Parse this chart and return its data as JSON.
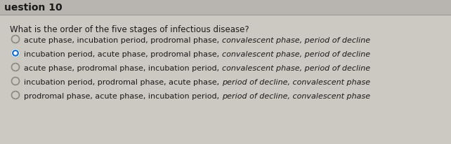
{
  "background_color": "#ccc9c3",
  "header_color": "#b8b5b0",
  "header_text": "uestion 10",
  "header_fontsize": 10,
  "question": "What is the order of the five stages of infectious disease?",
  "question_fontsize": 8.5,
  "options": [
    "acute phase, incubation period, prodromal phase, convalescent phase, period of decline",
    "incubation period, acute phase, prodromal phase, convalescent phase, period of decline",
    "acute phase, prodromal phase, incubation period, convalescent phase, period of decline",
    "incubation period, prodromal phase, acute phase, period of decline, convalescent phase",
    "prodromal phase, acute phase, incubation period, period of decline, convalescent phase"
  ],
  "option_fontsize": 8.0,
  "selected_index": 1,
  "radio_color_unselected": "#888880",
  "radio_color_selected": "#1a6fc4",
  "text_color": "#1a1a1a",
  "fig_width": 6.42,
  "fig_height": 2.07,
  "dpi": 100
}
